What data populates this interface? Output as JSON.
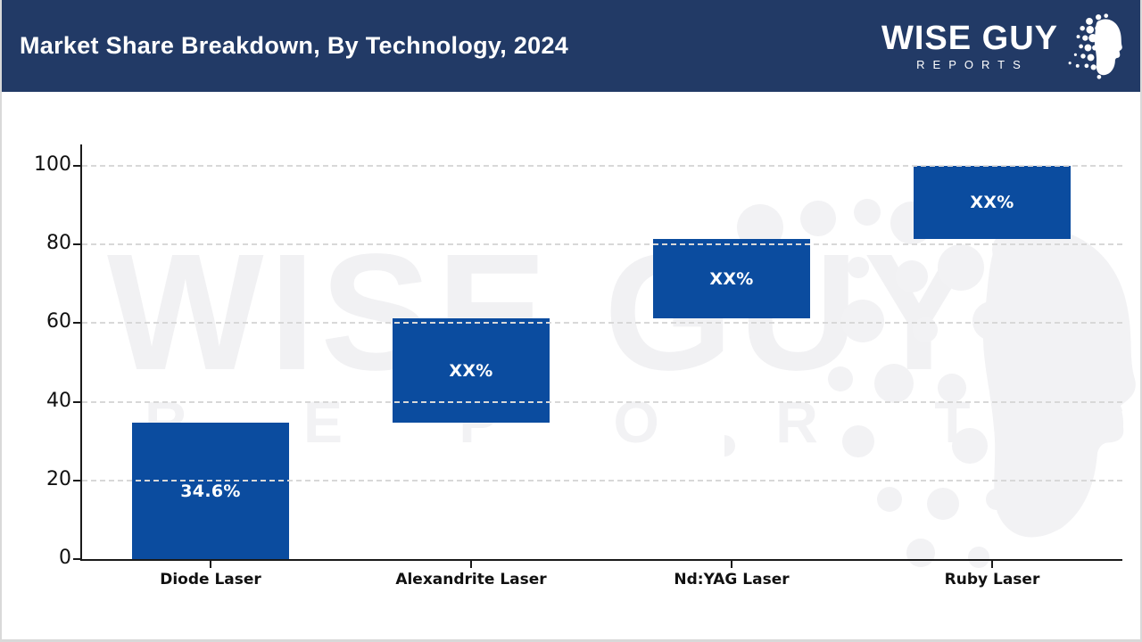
{
  "header": {
    "title": "Market Share Breakdown, By Technology, 2024",
    "logo": {
      "line1": "WISE GUY",
      "line2": "REPORTS"
    }
  },
  "watermark": {
    "line1": "WISE GUY",
    "line2": "R E P O R T S"
  },
  "chart_data": {
    "type": "bar",
    "subtype": "waterfall-stacked-segments",
    "title": "Market Share Breakdown, By Technology, 2024",
    "categories": [
      "Diode Laser",
      "Alexandrite Laser",
      "Nd:YAG Laser",
      "Ruby Laser"
    ],
    "segments": [
      {
        "category": "Diode Laser",
        "start": 0,
        "end": 34.6,
        "label": "34.6%"
      },
      {
        "category": "Alexandrite Laser",
        "start": 34.6,
        "end": 61.2,
        "label": "XX%"
      },
      {
        "category": "Nd:YAG Laser",
        "start": 61.2,
        "end": 81.4,
        "label": "XX%"
      },
      {
        "category": "Ruby Laser",
        "start": 81.4,
        "end": 100,
        "label": "XX%"
      }
    ],
    "y_ticks": [
      0,
      20,
      40,
      60,
      80,
      100
    ],
    "ylim": [
      0,
      100
    ],
    "xlabel": "",
    "ylabel": "",
    "grid": "horizontal-dashed-above-bars",
    "legend": "none"
  },
  "colors": {
    "header_bg": "#223a66",
    "bar_blue": "#0b4c9f",
    "bar_label": "#ffffff",
    "grid": "#d8d8d8",
    "axis": "#1a1a1a",
    "watermark": "#f1f1f3",
    "frame_border": "#d9d9d9"
  }
}
